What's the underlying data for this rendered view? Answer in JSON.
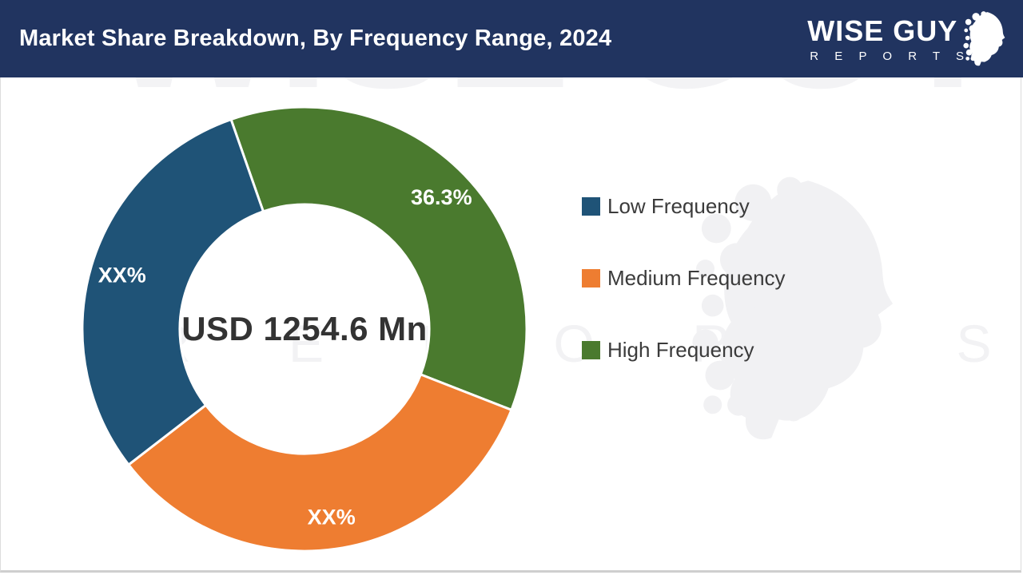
{
  "header": {
    "title": "Market Share Breakdown, By Frequency Range, 2024",
    "logo": {
      "line1": "WISE GUY",
      "line2": "REPORTS",
      "line2_spaced": "R E P O R T S"
    }
  },
  "chart_data": {
    "type": "pie",
    "variant": "donut",
    "title": "Market Share Breakdown, By Frequency Range, 2024",
    "center_label": "USD 1254.6 Mn",
    "start_angle_deg": -19.3,
    "inner_radius_fraction": 0.557,
    "label_radius_fraction": 0.85,
    "grid": false,
    "categories": [
      "Low Frequency",
      "Medium Frequency",
      "High Frequency"
    ],
    "values": [
      30.1,
      33.6,
      36.3
    ],
    "displayed_labels": [
      "XX%",
      "XX%",
      "36.3%"
    ],
    "segments_draw_order": [
      {
        "name": "High Frequency",
        "percent": 36.3,
        "label": "36.3%",
        "color": "#4a7a2e",
        "estimated": false
      },
      {
        "name": "Medium Frequency",
        "percent": 33.6,
        "label": "XX%",
        "color": "#ee7d31",
        "estimated": true
      },
      {
        "name": "Low Frequency",
        "percent": 30.1,
        "label": "XX%",
        "color": "#1f5377",
        "estimated": true
      }
    ],
    "legend": {
      "position": "right",
      "items": [
        {
          "label": "Low Frequency",
          "color": "#1f5377"
        },
        {
          "label": "Medium Frequency",
          "color": "#ee7d31"
        },
        {
          "label": "High Frequency",
          "color": "#4a7a2e"
        }
      ]
    }
  },
  "watermark": {
    "text_large": "WISE GUY",
    "text_spaced": "R E P O R T S"
  },
  "colors": {
    "header_bg": "#213460",
    "header_text": "#ffffff",
    "center_text": "#333333",
    "legend_text": "#3b3b3b",
    "watermark": "#f3f3f5",
    "border": "#dcdcdc"
  }
}
